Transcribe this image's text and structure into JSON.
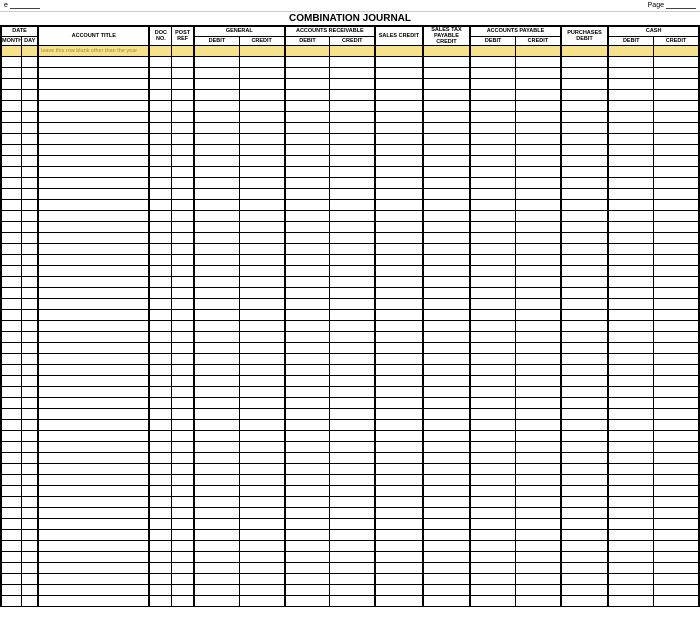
{
  "page_label": "Page",
  "left_label": "e",
  "title": "COMBINATION JOURNAL",
  "headers": {
    "date": "DATE",
    "month": "MONTH",
    "day": "DAY",
    "account_title": "ACCOUNT TITLE",
    "doc_no": "DOC NO.",
    "post_ref": "POST REF",
    "general": "GENERAL",
    "accounts_receivable": "ACCOUNTS RECEIVABLE",
    "sales_credit": "SALES CREDIT",
    "sales_tax_payable_credit": "SALES TAX PAYABLE CREDIT",
    "accounts_payable": "ACCOUNTS PAYABLE",
    "purchases_debit": "PURCHASES DEBIT",
    "cash": "CASH",
    "debit": "DEBIT",
    "credit": "CREDIT"
  },
  "highlight_note": "leave this row blank other than the year",
  "body_row_count": 50,
  "colors": {
    "highlight_bg": "#f5e28a",
    "highlight_text": "#b08a2e",
    "border": "#000000",
    "background": "#ffffff"
  }
}
